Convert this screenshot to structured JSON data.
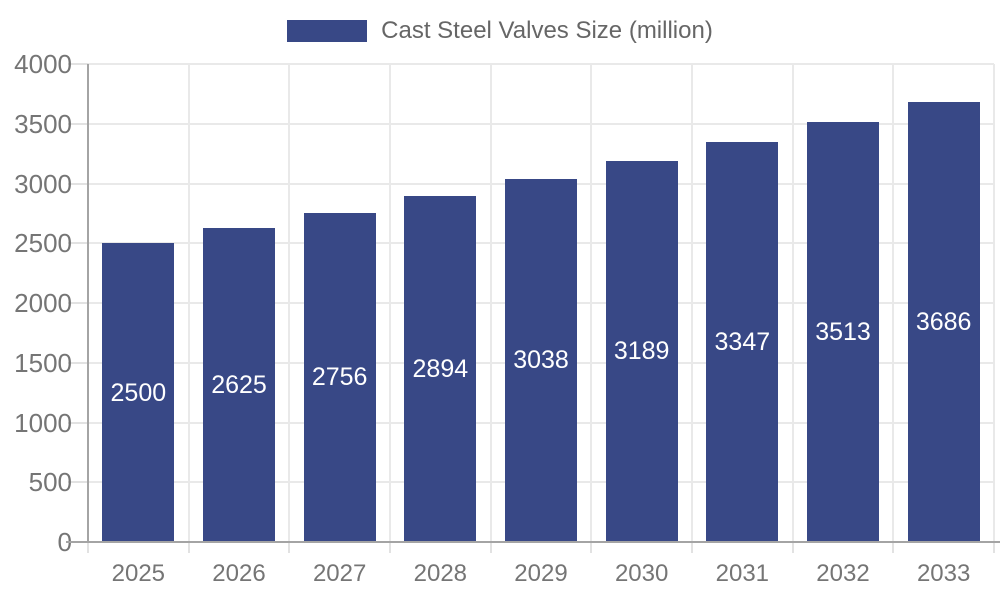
{
  "chart_data": {
    "type": "bar",
    "title": "Cast Steel Valves Size (million)",
    "legend_label": "Cast Steel Valves Size (million)",
    "legend_position": "top",
    "categories": [
      "2025",
      "2026",
      "2027",
      "2028",
      "2029",
      "2030",
      "2031",
      "2032",
      "2033"
    ],
    "series": [
      {
        "name": "Cast Steel Valves Size (million)",
        "values": [
          2500,
          2625,
          2756,
          2894,
          3038,
          3189,
          3347,
          3513,
          3686
        ]
      }
    ],
    "xlabel": "",
    "ylabel": "",
    "ylim": [
      0,
      4000
    ],
    "yticks": [
      0,
      500,
      1000,
      1500,
      2000,
      2500,
      3000,
      3500,
      4000
    ],
    "grid": true,
    "value_labels_shown": true,
    "colors": {
      "bar": "#384886",
      "value_label": "#ffffff",
      "gridline": "#e9e9e9",
      "tick": "#e2e2e2",
      "axis_line": "#a4a4a4",
      "axis_label": "#757575",
      "legend_text": "#666666",
      "background": "#ffffff"
    }
  }
}
